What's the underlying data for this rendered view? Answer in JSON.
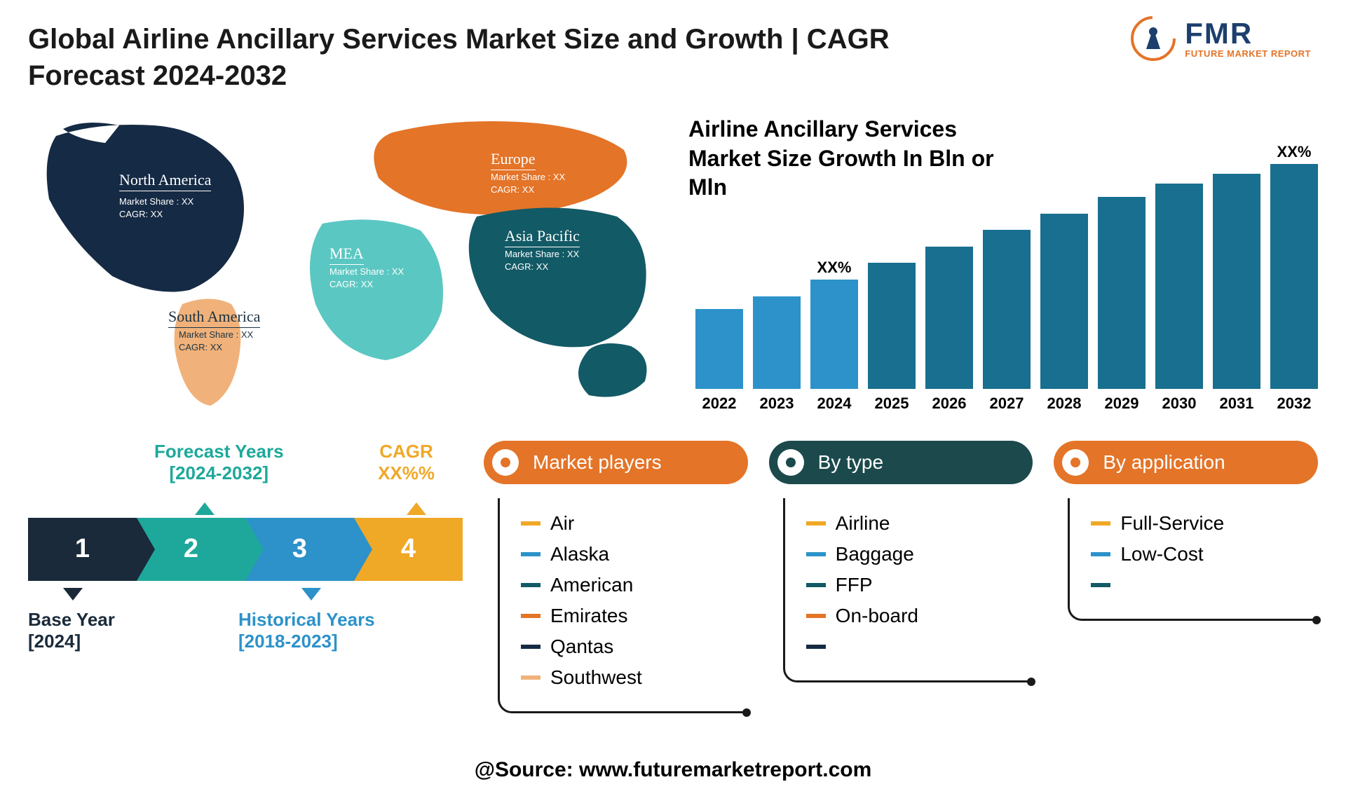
{
  "title": "Global Airline Ancillary Services Market Size and Growth | CAGR Forecast 2024-2032",
  "logo": {
    "fmr": "FMR",
    "sub": "FUTURE MARKET REPORT"
  },
  "map": {
    "regions": [
      {
        "name": "North America",
        "share": "Market Share : XX",
        "cagr": "CAGR: XX",
        "color": "#152a44"
      },
      {
        "name": "South America",
        "share": "Market Share : XX",
        "cagr": "CAGR: XX",
        "color": "#f0b27a"
      },
      {
        "name": "MEA",
        "share": "Market Share : XX",
        "cagr": "CAGR: XX",
        "color": "#5bc7c2"
      },
      {
        "name": "Europe",
        "share": "Market Share : XX",
        "cagr": "CAGR: XX",
        "color": "#e47428"
      },
      {
        "name": "Asia Pacific",
        "share": "Market Share : XX",
        "cagr": "CAGR: XX",
        "color": "#125a66"
      }
    ]
  },
  "chart": {
    "title": "Airline Ancillary Services Market Size Growth In Bln or Mln",
    "top_labels": {
      "2024": "XX%",
      "2032": "XX%"
    },
    "years": [
      "2022",
      "2023",
      "2024",
      "2025",
      "2026",
      "2027",
      "2028",
      "2029",
      "2030",
      "2031",
      "2032"
    ],
    "values": [
      120,
      140,
      165,
      190,
      215,
      240,
      265,
      290,
      310,
      325,
      340
    ],
    "max": 360,
    "bar_colors": [
      "#2c92c9",
      "#2c92c9",
      "#2c92c9",
      "#186f8f",
      "#186f8f",
      "#186f8f",
      "#186f8f",
      "#186f8f",
      "#186f8f",
      "#186f8f",
      "#186f8f"
    ],
    "label_fontsize": 22
  },
  "timeline": {
    "forecast_label": "Forecast Years",
    "forecast_value": "[2024-2032]",
    "cagr_label": "CAGR",
    "cagr_value": "XX%%",
    "base_label": "Base Year",
    "base_value": "[2024]",
    "hist_label": "Historical Years",
    "hist_value": "[2018-2023]",
    "segments": [
      "1",
      "2",
      "3",
      "4"
    ],
    "colors": {
      "base": "#1a2a3a",
      "forecast": "#1ea89b",
      "hist": "#2c92c9",
      "cagr": "#f0a827"
    }
  },
  "categories": [
    {
      "title": "Market players",
      "pill_class": "orange",
      "items": [
        {
          "label": "Air",
          "color": "#f0a827"
        },
        {
          "label": "Alaska",
          "color": "#2c92c9"
        },
        {
          "label": "American",
          "color": "#125a66"
        },
        {
          "label": "Emirates",
          "color": "#e47428"
        },
        {
          "label": "Qantas",
          "color": "#152a44"
        },
        {
          "label": "Southwest",
          "color": "#f0b27a"
        }
      ]
    },
    {
      "title": "By type",
      "pill_class": "teal",
      "items": [
        {
          "label": "Airline",
          "color": "#f0a827"
        },
        {
          "label": "Baggage",
          "color": "#2c92c9"
        },
        {
          "label": "FFP",
          "color": "#125a66"
        },
        {
          "label": "On-board",
          "color": "#e47428"
        },
        {
          "label": "  ",
          "color": "#152a44"
        }
      ]
    },
    {
      "title": "By application",
      "pill_class": "orange",
      "items": [
        {
          "label": "Full-Service",
          "color": "#f0a827"
        },
        {
          "label": "Low-Cost",
          "color": "#2c92c9"
        },
        {
          "label": "  ",
          "color": "#125a66"
        }
      ]
    }
  ],
  "source": "@Source: www.futuremarketreport.com"
}
